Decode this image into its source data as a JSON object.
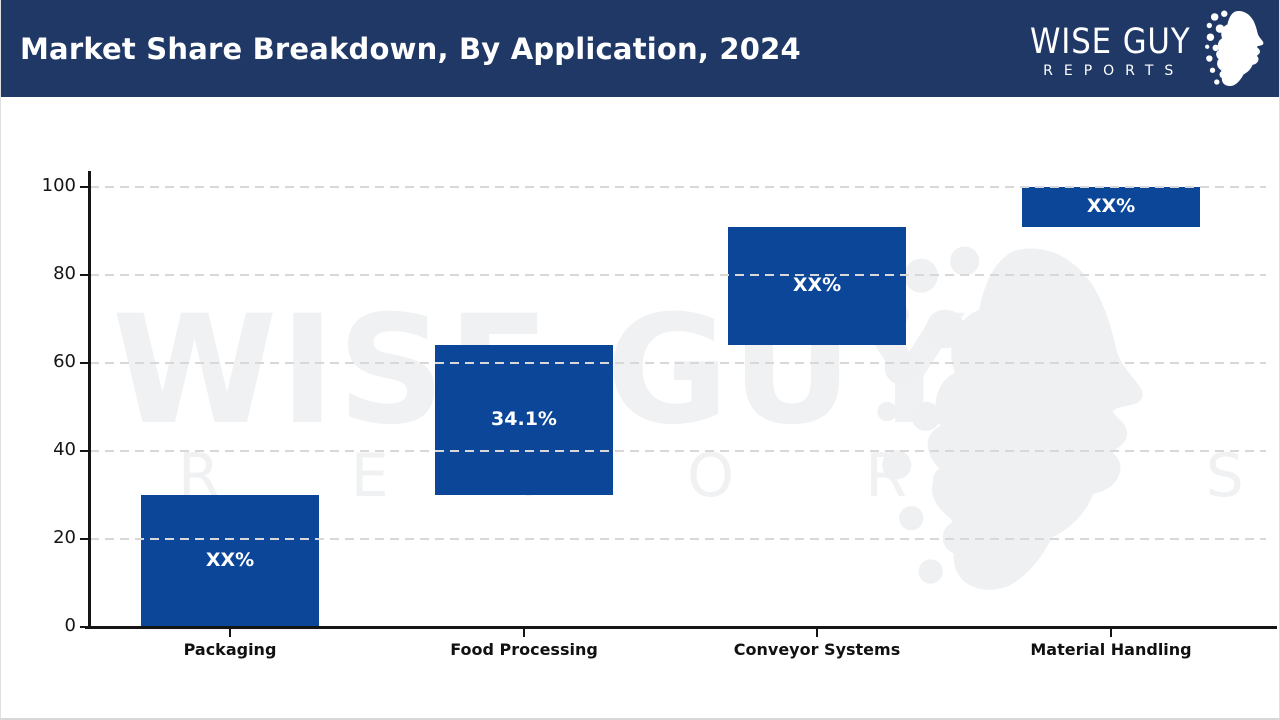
{
  "header": {
    "title": "Market Share Breakdown, By Application, 2024",
    "bg_color": "#1f3866",
    "logo": {
      "line1": "WISE GUY",
      "line2": "REPORTS"
    }
  },
  "watermark": {
    "line1": "WISE GUY",
    "line2": "R E P O R T S"
  },
  "chart_data": {
    "type": "bar",
    "subtype": "waterfall-floating-bars",
    "title": "Market Share Breakdown, By Application, 2024",
    "categories": [
      "Packaging",
      "Food Processing",
      "Conveyor Systems",
      "Material Handling"
    ],
    "segments": [
      {
        "category": "Packaging",
        "start": 0,
        "end": 30,
        "label": "XX%"
      },
      {
        "category": "Food Processing",
        "start": 30,
        "end": 64.1,
        "label": "34.1%"
      },
      {
        "category": "Conveyor Systems",
        "start": 64.1,
        "end": 91,
        "label": "XX%"
      },
      {
        "category": "Material Handling",
        "start": 91,
        "end": 100,
        "label": "XX%"
      }
    ],
    "yticks": [
      0,
      20,
      40,
      60,
      80,
      100
    ],
    "ylim": [
      0,
      104
    ],
    "xlabel": "",
    "ylabel": "",
    "grid": true,
    "gridline_style": "dashed",
    "gridline_color": "#d8d8d8",
    "bar_color": "#0b4699",
    "bar_label_color": "#ffffff",
    "axis_color": "#151515",
    "legend": "none"
  }
}
